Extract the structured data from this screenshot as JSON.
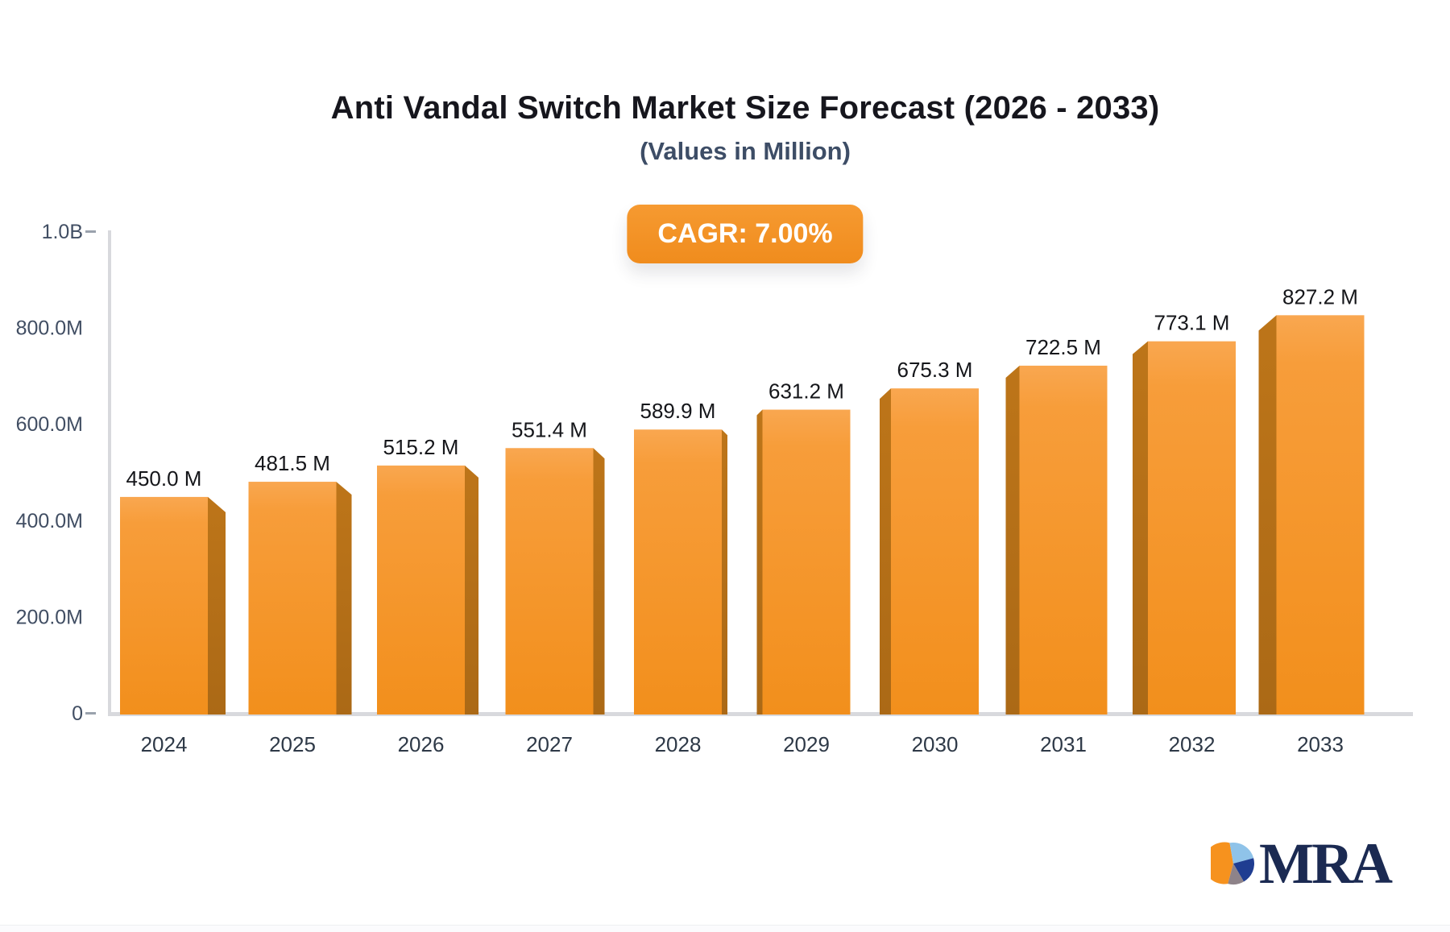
{
  "title": "Anti Vandal Switch Market Size Forecast (2026 - 2033)",
  "subtitle": "(Values in Million)",
  "badge": {
    "label": "CAGR: 7.00%",
    "bg_color": "#f3912a",
    "text_color": "#ffffff"
  },
  "chart_data": {
    "type": "bar",
    "title": "Anti Vandal Switch Market Size Forecast (2026 - 2033)",
    "subtitle": "(Values in Million)",
    "categories": [
      "2024",
      "2025",
      "2026",
      "2027",
      "2028",
      "2029",
      "2030",
      "2031",
      "2032",
      "2033"
    ],
    "values": [
      450.0,
      481.5,
      515.2,
      551.4,
      589.9,
      631.2,
      675.3,
      722.5,
      773.1,
      827.2
    ],
    "value_labels": [
      "450.0 M",
      "481.5 M",
      "515.2 M",
      "551.4 M",
      "589.9 M",
      "631.2 M",
      "675.3 M",
      "722.5 M",
      "773.1 M",
      "827.2 M"
    ],
    "xlabel": "",
    "ylabel": "",
    "ylim": [
      0,
      1000
    ],
    "yticks": [
      {
        "label": "1.0B",
        "value": 1000
      },
      {
        "label": "800.0M",
        "value": 800
      },
      {
        "label": "600.0M",
        "value": 600
      },
      {
        "label": "400.0M",
        "value": 400
      },
      {
        "label": "200.0M",
        "value": 200
      },
      {
        "label": "0",
        "value": 0
      }
    ],
    "grid": false,
    "legend": "none",
    "bar_face_color": "#f6951f",
    "bar_face_color_light": "#f9a750",
    "bar_side_color": "#b5711a",
    "axis_color": "#d8d9dd",
    "tick_dash_color": "#9aa2ad"
  },
  "logo": {
    "text": "MRA",
    "icon": "pie-chart-logo-icon",
    "text_color": "#1b2a52",
    "pie_colors": {
      "orange": "#f6921e",
      "light_blue": "#8fc3e9",
      "navy": "#1f3d91",
      "gray": "#8e8389"
    }
  }
}
